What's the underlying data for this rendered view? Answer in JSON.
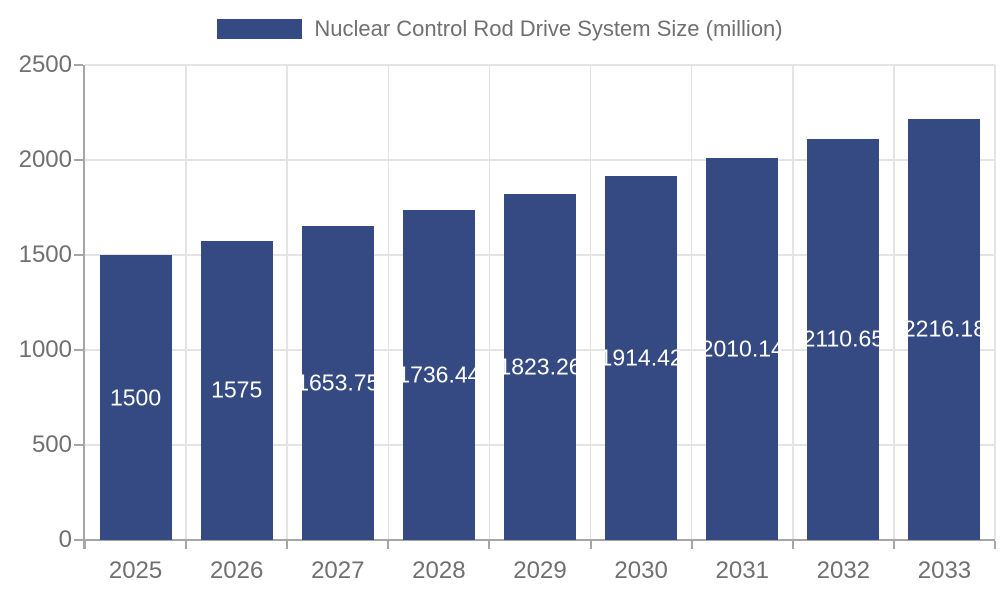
{
  "chart_data": {
    "type": "bar",
    "series_name": "Nuclear Control Rod Drive System Size (million)",
    "categories": [
      "2025",
      "2026",
      "2027",
      "2028",
      "2029",
      "2030",
      "2031",
      "2032",
      "2033"
    ],
    "values": [
      1500,
      1575,
      1653.75,
      1736.44,
      1823.26,
      1914.42,
      2010.14,
      2110.65,
      2216.18
    ],
    "bar_labels": [
      "1500",
      "1575",
      "1653.75",
      "1736.44",
      "1823.26",
      "1914.42",
      "2010.14",
      "2110.65",
      "2216.18"
    ],
    "xlabel": "",
    "ylabel": "",
    "ylim": [
      0,
      2500
    ],
    "y_ticks": [
      0,
      500,
      1000,
      1500,
      2000,
      2500
    ],
    "grid": true,
    "legend_position": "top"
  },
  "colors": {
    "bar": "#354A83",
    "bar_label_text": "#FFFFFF",
    "grid_line": "#E4E4E4",
    "axis_line": "#A6A6A6",
    "axis_label": "#707070",
    "legend_text": "#707070"
  }
}
